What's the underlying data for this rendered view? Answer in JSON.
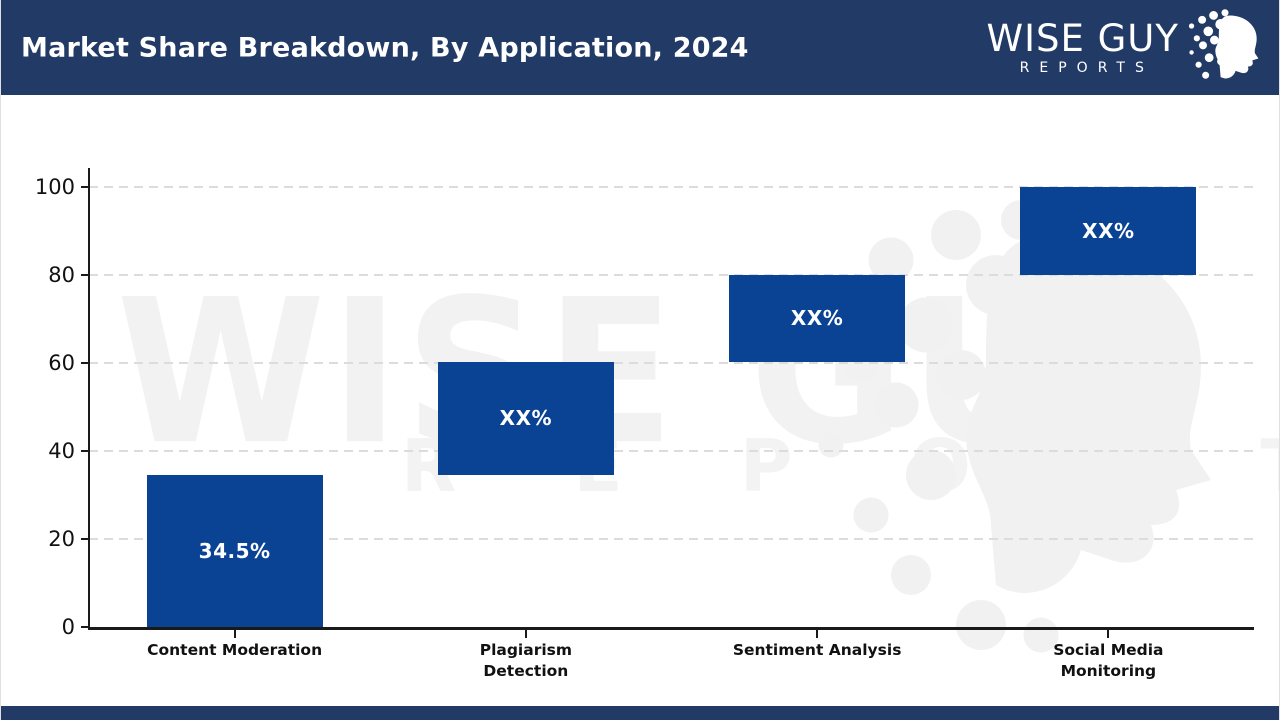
{
  "page": {
    "background": "#ffffff",
    "accent_navy": "#213a66"
  },
  "header": {
    "title": "Market Share Breakdown, By Application, 2024"
  },
  "logo": {
    "wordmark": "WISE GUY",
    "subtitle": "REPORTS"
  },
  "watermark": {
    "line1": "WISE GU",
    "line2": "R E P O R T S"
  },
  "chart_data": {
    "type": "bar",
    "subtype": "waterfall",
    "title": "Market Share Breakdown, By Application, 2024",
    "categories": [
      "Content Moderation",
      "Plagiarism\nDetection",
      "Sentiment Analysis",
      "Social Media\nMonitoring"
    ],
    "segments": [
      {
        "category": "Content Moderation",
        "start": 0,
        "end": 34.5,
        "label": "34.5%"
      },
      {
        "category": "Plagiarism Detection",
        "start": 34.5,
        "end": 60.3,
        "label": "XX%"
      },
      {
        "category": "Sentiment Analysis",
        "start": 60.3,
        "end": 80,
        "label": "XX%"
      },
      {
        "category": "Social Media Monitoring",
        "start": 80,
        "end": 100,
        "label": "XX%"
      }
    ],
    "ylim": [
      0,
      100
    ],
    "yticks": [
      0,
      20,
      40,
      60,
      80,
      100
    ],
    "xlabel": "",
    "ylabel": "",
    "grid": true,
    "gridline_style": "dashed",
    "legend_position": "none",
    "bar_color": "#0a4294",
    "bar_label_color": "#ffffff",
    "axis_color": "#1a1a1a",
    "gridline_color": "#dcdcdc",
    "tick_label_color": "#111111"
  }
}
